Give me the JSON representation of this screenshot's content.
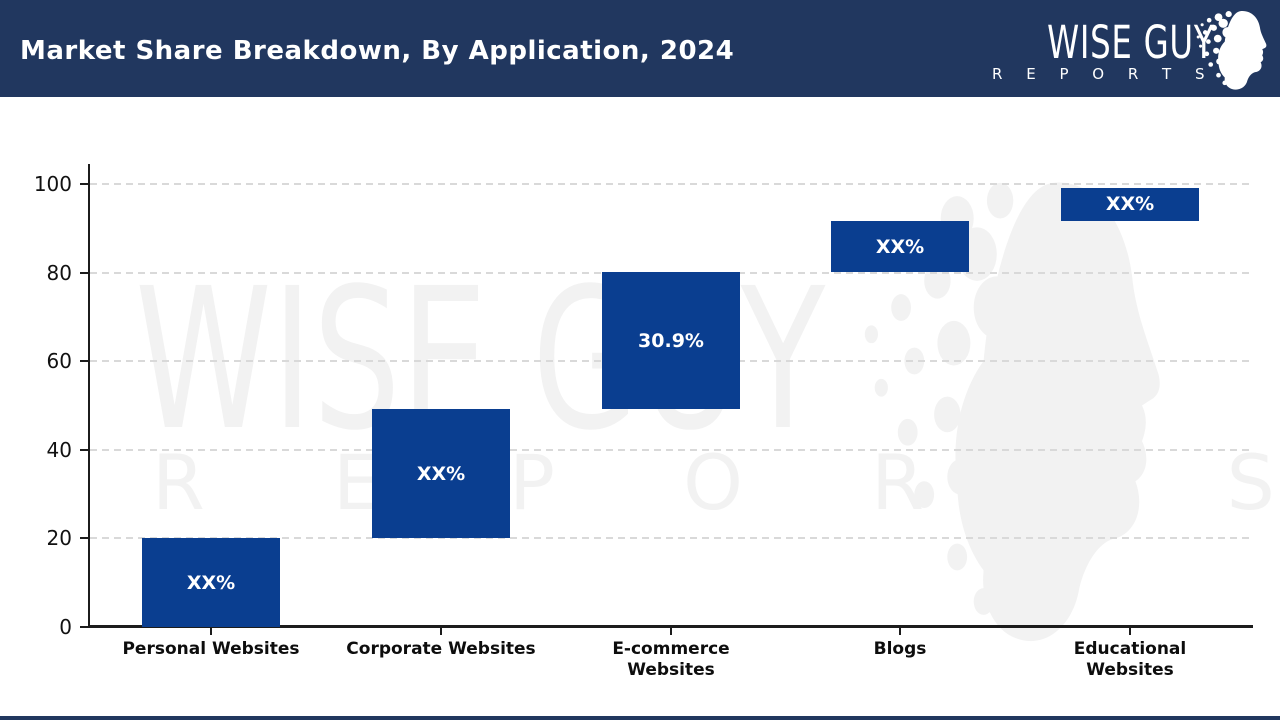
{
  "header": {
    "title": "Market Share Breakdown, By Application, 2024",
    "logo": {
      "line1": "WISE GUY",
      "line2": "R E P O R T S"
    }
  },
  "watermark": {
    "line1": "WISE GUY",
    "line2": "R E P O R T S"
  },
  "colors": {
    "header_bg": "#21375f",
    "bar": "#0a3e90",
    "bar_label": "#ffffff",
    "grid": "#d9d9d9",
    "axis": "#1c1c1c",
    "watermark": "#f2f2f2",
    "title_text": "#ffffff"
  },
  "chart_data": {
    "type": "bar",
    "subtype": "waterfall",
    "title": "Market Share Breakdown, By Application, 2024",
    "categories": [
      "Personal Websites",
      "Corporate Websites",
      "E-commerce\nWebsites",
      "Blogs",
      "Educational\nWebsites"
    ],
    "series": [
      {
        "name": "Market Share",
        "segments": [
          {
            "category": "Personal Websites",
            "start": 0,
            "end": 20,
            "label": "XX%"
          },
          {
            "category": "Corporate Websites",
            "start": 20,
            "end": 49.2,
            "label": "XX%"
          },
          {
            "category": "E-commerce Websites",
            "start": 49.2,
            "end": 80.1,
            "label": "30.9%"
          },
          {
            "category": "Blogs",
            "start": 80.1,
            "end": 91.6,
            "label": "XX%"
          },
          {
            "category": "Educational Websites",
            "start": 91.6,
            "end": 99.2,
            "label": "XX%"
          }
        ]
      }
    ],
    "xlabel": "",
    "ylabel": "",
    "ylim": [
      0,
      104.5
    ],
    "yticks": [
      0,
      20,
      40,
      60,
      80,
      100
    ],
    "grid": "horizontal-dashed",
    "legend": "none"
  }
}
